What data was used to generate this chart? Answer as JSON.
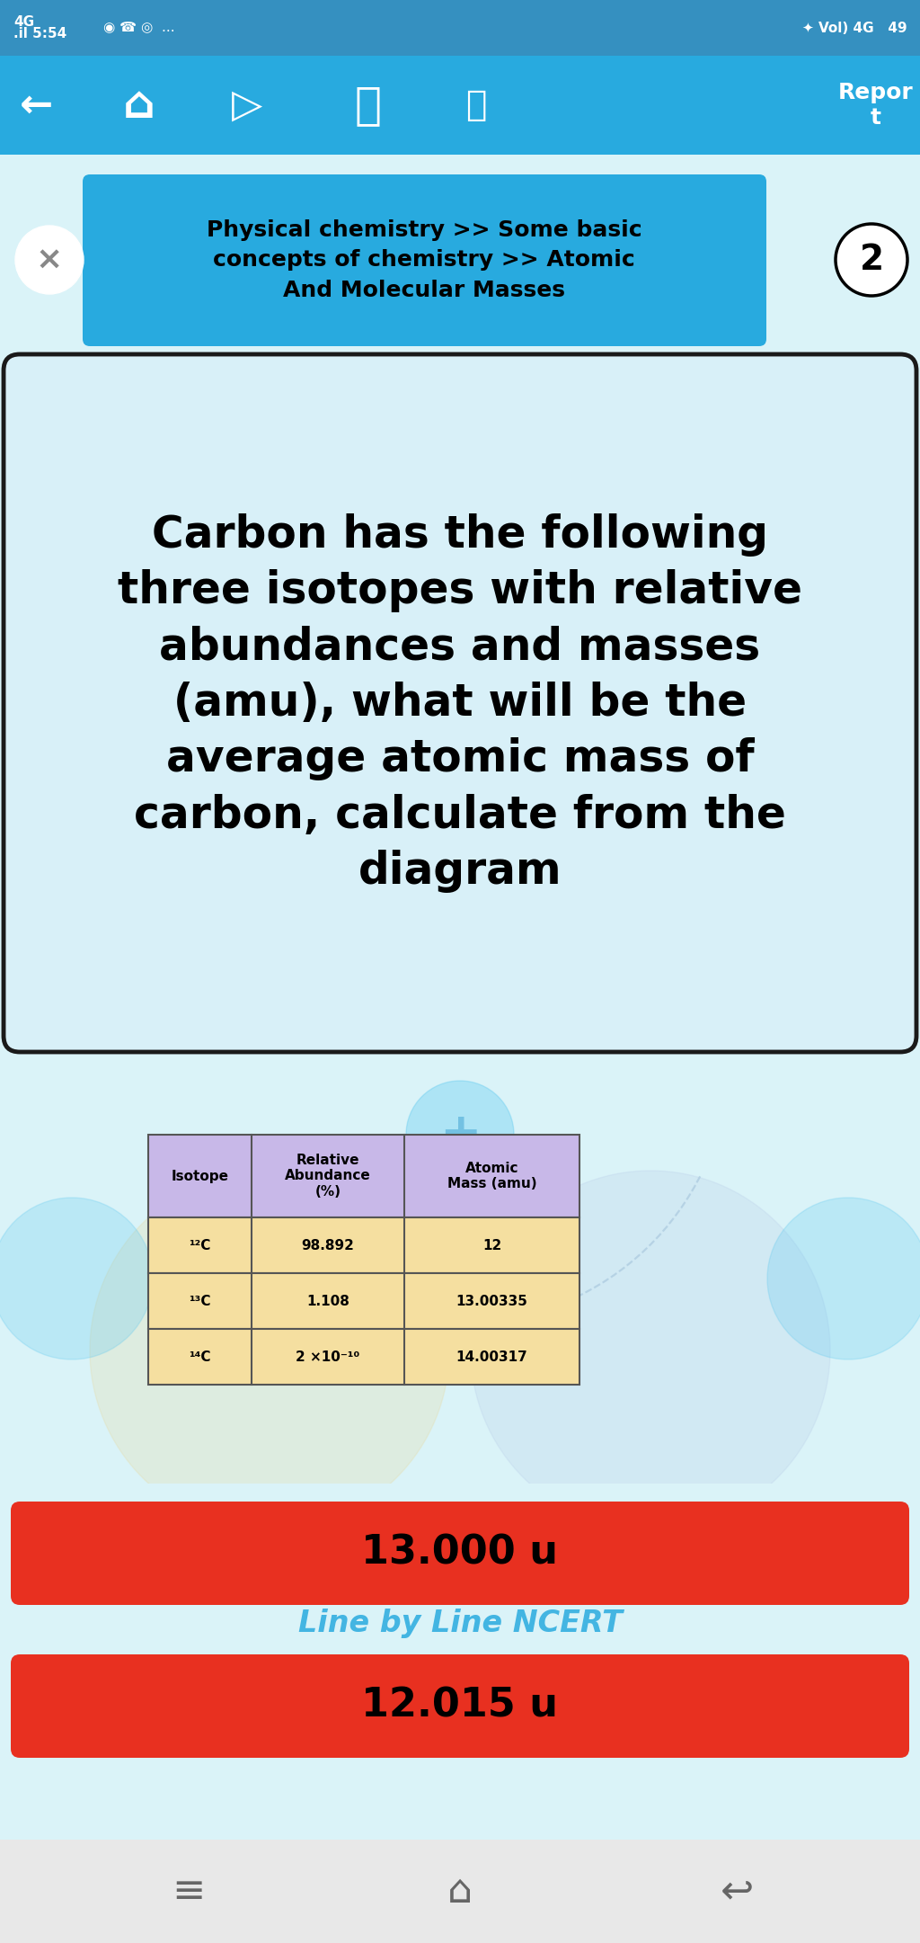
{
  "status_bar_color": "#3590c0",
  "nav_bar_color": "#28aadf",
  "bg_color": "#daf3f8",
  "breadcrumb_bg": "#28aadf",
  "breadcrumb_text": "Physical chemistry >> Some basic\nconcepts of chemistry >> Atomic\nAnd Molecular Masses",
  "question_text": "Carbon has the following\nthree isotopes with relative\nabundances and masses\n(amu), what will be the\naverage atomic mass of\ncarbon, calculate from the\ndiagram",
  "question_box_bg": "#d8f0f8",
  "question_box_border": "#1a1a1a",
  "table_header_bg": "#c8b8e8",
  "table_body_bg": "#f5dfa0",
  "table_border": "#555555",
  "table_headers": [
    "Isotope",
    "Relative\nAbundance\n(%)",
    "Atomic\nMass (amu)"
  ],
  "table_rows": [
    [
      "¹²C",
      "98.892",
      "12"
    ],
    [
      "¹³C",
      "1.108",
      "13.00335"
    ],
    [
      "¹⁴C",
      "2 ×10⁻¹⁰",
      "14.00317"
    ]
  ],
  "answer_wrong_bg": "#e83020",
  "answer_wrong_text": "13.000 u",
  "answer_correct_bg": "#e83020",
  "answer_correct_text": "12.015 u",
  "watermark_text": "Line by Line NCERT",
  "bottom_bar_color": "#e8e8e8"
}
